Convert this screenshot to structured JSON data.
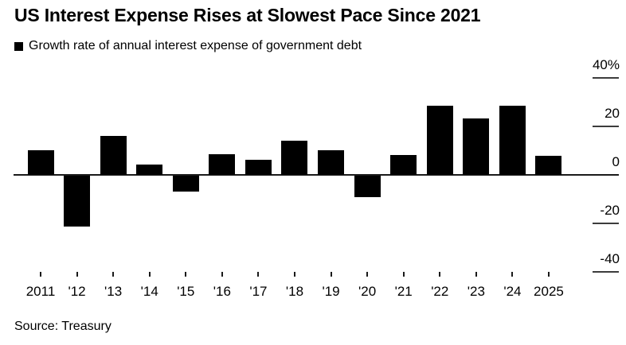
{
  "title": "US Interest Expense Rises at Slowest Pace Since 2021",
  "legend": {
    "label": "Growth rate of annual interest expense of government debt",
    "swatch_color": "#000000"
  },
  "source": "Source: Treasury",
  "chart_data": {
    "type": "bar",
    "title": "US Interest Expense Rises at Slowest Pace Since 2021",
    "series_label": "Growth rate of annual interest expense of government debt",
    "categories": [
      "2011",
      "'12",
      "'13",
      "'14",
      "'15",
      "'16",
      "'17",
      "'18",
      "'19",
      "'20",
      "'21",
      "'22",
      "'23",
      "'24",
      "2025"
    ],
    "values": [
      10.1,
      -21.1,
      16.1,
      4.2,
      -6.6,
      8.4,
      6.3,
      14.2,
      10.2,
      -8.9,
      8.2,
      28.4,
      23.1,
      28.6,
      7.9
    ],
    "unit": "%",
    "xlabel": "",
    "ylabel": "",
    "ylim": [
      -45,
      42
    ],
    "y_ticks": [
      40,
      20,
      0,
      -20,
      -40
    ],
    "y_tick_labels": [
      "40%",
      "20",
      "0",
      "-20",
      "-40"
    ],
    "legend_position": "top-left",
    "grid": "right-stub-ticks",
    "bar_color": "#000000",
    "axis_color": "#1a1a1a",
    "background_color": "#ffffff"
  }
}
